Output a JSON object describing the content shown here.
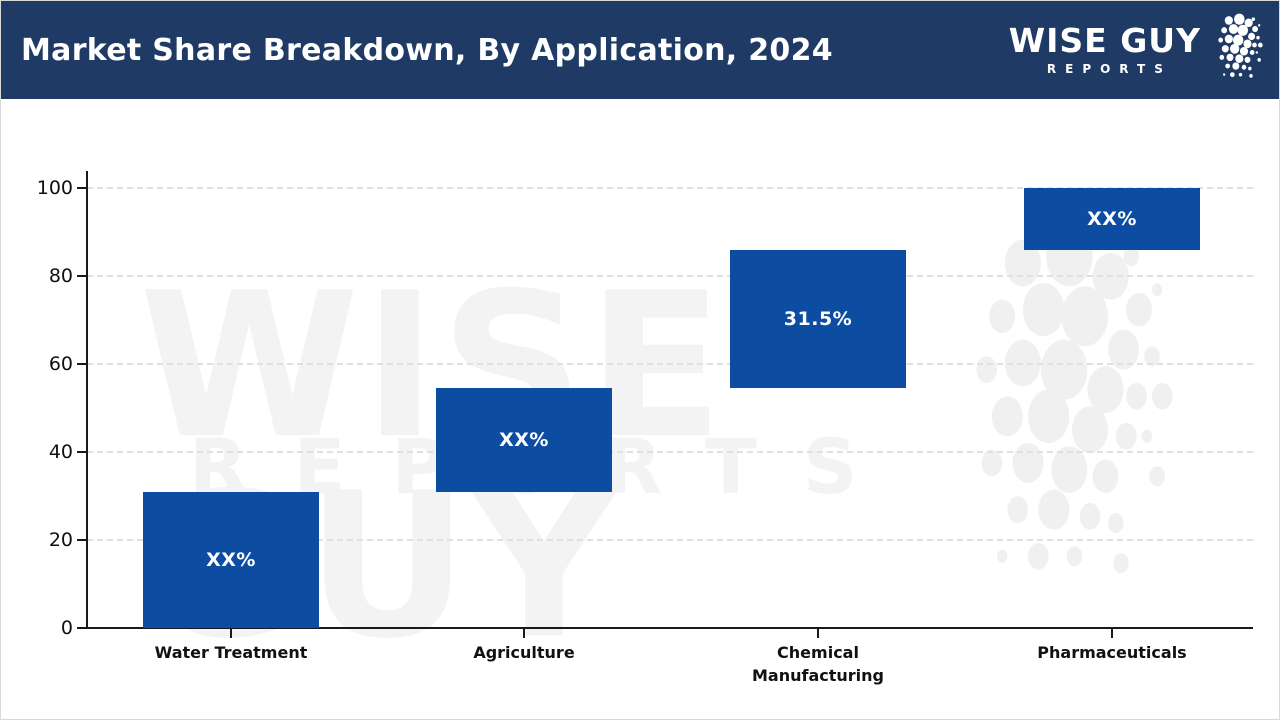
{
  "header": {
    "title": "Market Share Breakdown, By Application, 2024",
    "logo": {
      "brand": "WISE GUY",
      "sub": "REPORTS"
    }
  },
  "watermark": {
    "brand": "WISE GUY",
    "sub": "REPORTS"
  },
  "chart_data": {
    "type": "bar",
    "subtype": "floating-segment waterfall of market share",
    "title": "Market Share Breakdown, By Application, 2024",
    "categories": [
      "Water Treatment",
      "Agriculture",
      "Chemical Manufacturing",
      "Pharmaceuticals"
    ],
    "category_label_lines": [
      [
        "Water Treatment"
      ],
      [
        "Agriculture"
      ],
      [
        "Chemical",
        "Manufacturing"
      ],
      [
        "Pharmaceuticals"
      ]
    ],
    "segments": [
      {
        "category": "Water Treatment",
        "start": 0,
        "end": 31,
        "label": "XX%"
      },
      {
        "category": "Agriculture",
        "start": 31,
        "end": 54.5,
        "label": "XX%"
      },
      {
        "category": "Chemical Manufacturing",
        "start": 54.5,
        "end": 86,
        "label": "31.5%"
      },
      {
        "category": "Pharmaceuticals",
        "start": 86,
        "end": 100,
        "label": "XX%"
      }
    ],
    "xlabel": "",
    "ylabel": "",
    "ylim": [
      0,
      100
    ],
    "yticks": [
      0,
      20,
      40,
      60,
      80,
      100
    ],
    "grid": "horizontal dashed",
    "legend": "none",
    "bar_color": "#0c4da2",
    "bar_label_color": "#ffffff"
  },
  "colors": {
    "header_bg": "#203a66",
    "bar": "#0c4da2",
    "axis": "#1a1a1a",
    "gridline": "#e0e0e0",
    "watermark": "#f3f3f3",
    "page_border": "#d9d9d9"
  }
}
